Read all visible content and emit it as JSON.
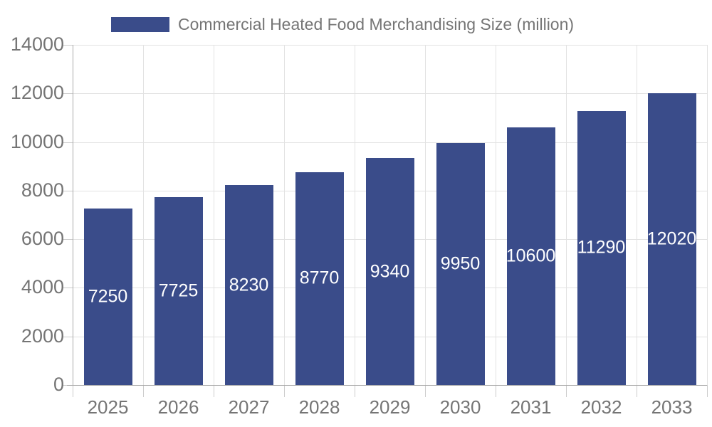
{
  "legend": {
    "items": [
      {
        "label": "Commercial Heated Food Merchandising Size (million)",
        "color": "#3A4C8A"
      }
    ]
  },
  "chart_data": {
    "type": "bar",
    "title": "Commercial Heated Food Merchandising Size (million)",
    "categories": [
      "2025",
      "2026",
      "2027",
      "2028",
      "2029",
      "2030",
      "2031",
      "2032",
      "2033"
    ],
    "values": [
      7250,
      7725,
      8230,
      8770,
      9340,
      9950,
      10600,
      11290,
      12020
    ],
    "series_name": "Commercial Heated Food Merchandising Size (million)",
    "xlabel": "",
    "ylabel": "",
    "ylim": [
      0,
      14000
    ],
    "yticks": [
      0,
      2000,
      4000,
      6000,
      8000,
      10000,
      12000,
      14000
    ],
    "grid": true,
    "legend_position": "top",
    "bar_color": "#3A4C8A",
    "value_label_color": "#FFFFFF"
  },
  "colors": {
    "background": "#FFFFFF",
    "grid": "#E2E2E2",
    "axis": "#AAAAAA",
    "tick": "#CCCCCC",
    "text": "#757575"
  }
}
